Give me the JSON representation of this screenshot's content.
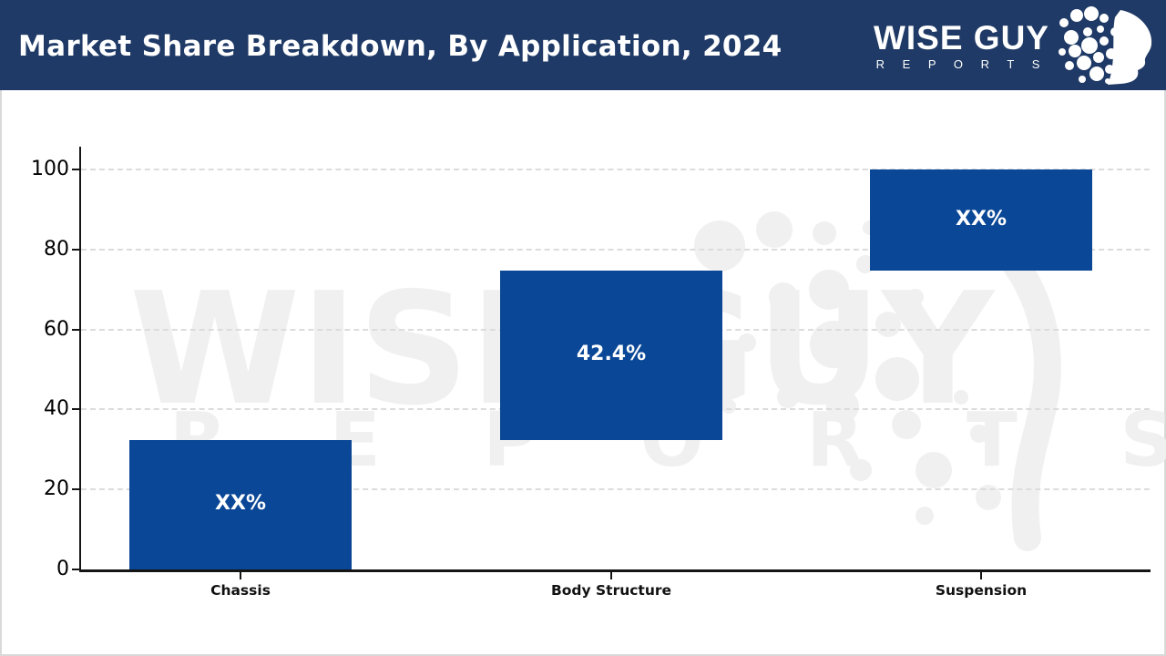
{
  "header": {
    "title": "Market Share Breakdown, By Application, 2024",
    "bg_color": "#1f3a66",
    "logo": {
      "line1": "WISE GUY",
      "line2": "R E P O R T S"
    }
  },
  "watermark": {
    "line1": "WISE GUY",
    "line2": "R E P O R T S"
  },
  "chart_data": {
    "type": "bar",
    "subtype": "floating-segment-waterfall",
    "title": "Market Share Breakdown, By Application, 2024",
    "categories": [
      "Chassis",
      "Body Structure",
      "Suspension"
    ],
    "segments": [
      {
        "category": "Chassis",
        "start": 0,
        "end": 32.3,
        "label": "XX%"
      },
      {
        "category": "Body Structure",
        "start": 32.3,
        "end": 74.7,
        "label": "42.4%"
      },
      {
        "category": "Suspension",
        "start": 74.7,
        "end": 100,
        "label": "XX%"
      }
    ],
    "xlabel": "",
    "ylabel": "",
    "ylim": [
      0,
      100
    ],
    "yticks": [
      0,
      20,
      40,
      60,
      80,
      100
    ],
    "grid": "horizontal-dashed",
    "legend": "none",
    "bar_color": "#0a4796",
    "bar_label_color": "#ffffff"
  }
}
